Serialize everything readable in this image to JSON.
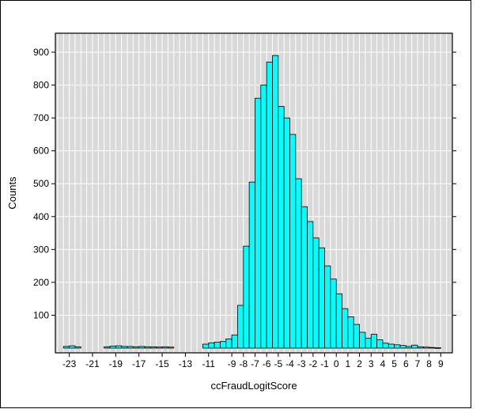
{
  "chart_data": {
    "type": "bar",
    "subtype": "histogram",
    "title": "",
    "xlabel": "ccFraudLogitScore",
    "ylabel": "Counts",
    "bin_width": 0.5,
    "xlim": [
      -24.2,
      10.0
    ],
    "ylim": [
      0,
      950
    ],
    "grid": true,
    "x_tick_values": [
      -23,
      -21,
      -19,
      -17,
      -15,
      -13,
      -11,
      -9,
      -8,
      -7,
      -6,
      -5,
      -4,
      -3,
      -2,
      -1,
      0,
      1,
      2,
      3,
      4,
      5,
      6,
      7,
      8,
      9
    ],
    "x_tick_labels": [
      "-23",
      "-21",
      "-19",
      "-17",
      "-15",
      "-13",
      "-11",
      "-9",
      "-8",
      "-7",
      "-6",
      "-5",
      "-4",
      "-3",
      "-2",
      "-1",
      "0",
      "1",
      "2",
      "3",
      "4",
      "5",
      "6",
      "7",
      "8",
      "9"
    ],
    "y_tick_values": [
      100,
      200,
      300,
      400,
      500,
      600,
      700,
      800,
      900
    ],
    "y_tick_labels": [
      "100",
      "200",
      "300",
      "400",
      "500",
      "600",
      "700",
      "800",
      "900"
    ],
    "colors": {
      "bar_fill": "#00FFFF",
      "bar_stroke": "#000000",
      "panel_bg": "#D9D9D9",
      "grid_line": "#FFFFFF",
      "axis": "#000000",
      "figure_border": "#000000",
      "background": "#FFFFFF"
    },
    "bins": [
      [
        -23.5,
        5
      ],
      [
        -23.0,
        7
      ],
      [
        -22.5,
        4
      ],
      [
        -20.0,
        4
      ],
      [
        -19.5,
        6
      ],
      [
        -19.0,
        7
      ],
      [
        -18.5,
        5
      ],
      [
        -18.0,
        5
      ],
      [
        -17.5,
        4
      ],
      [
        -17.0,
        5
      ],
      [
        -16.5,
        4
      ],
      [
        -16.0,
        4
      ],
      [
        -15.5,
        3
      ],
      [
        -15.0,
        4
      ],
      [
        -14.5,
        3
      ],
      [
        -11.5,
        12
      ],
      [
        -11.0,
        16
      ],
      [
        -10.5,
        18
      ],
      [
        -10.0,
        20
      ],
      [
        -9.5,
        28
      ],
      [
        -9.0,
        40
      ],
      [
        -8.5,
        130
      ],
      [
        -8.0,
        310
      ],
      [
        -7.5,
        505
      ],
      [
        -7.0,
        760
      ],
      [
        -6.5,
        800
      ],
      [
        -6.0,
        870
      ],
      [
        -5.5,
        890
      ],
      [
        -5.0,
        735
      ],
      [
        -4.5,
        700
      ],
      [
        -4.0,
        650
      ],
      [
        -3.5,
        515
      ],
      [
        -3.0,
        430
      ],
      [
        -2.5,
        385
      ],
      [
        -2.0,
        335
      ],
      [
        -1.5,
        305
      ],
      [
        -1.0,
        250
      ],
      [
        -0.5,
        210
      ],
      [
        0.0,
        165
      ],
      [
        0.5,
        120
      ],
      [
        1.0,
        95
      ],
      [
        1.5,
        72
      ],
      [
        2.0,
        48
      ],
      [
        2.5,
        30
      ],
      [
        3.0,
        42
      ],
      [
        3.5,
        25
      ],
      [
        4.0,
        15
      ],
      [
        4.5,
        12
      ],
      [
        5.0,
        10
      ],
      [
        5.5,
        8
      ],
      [
        6.0,
        5
      ],
      [
        6.5,
        9
      ],
      [
        7.0,
        4
      ],
      [
        7.5,
        3
      ],
      [
        8.0,
        2
      ],
      [
        8.5,
        1
      ]
    ]
  }
}
